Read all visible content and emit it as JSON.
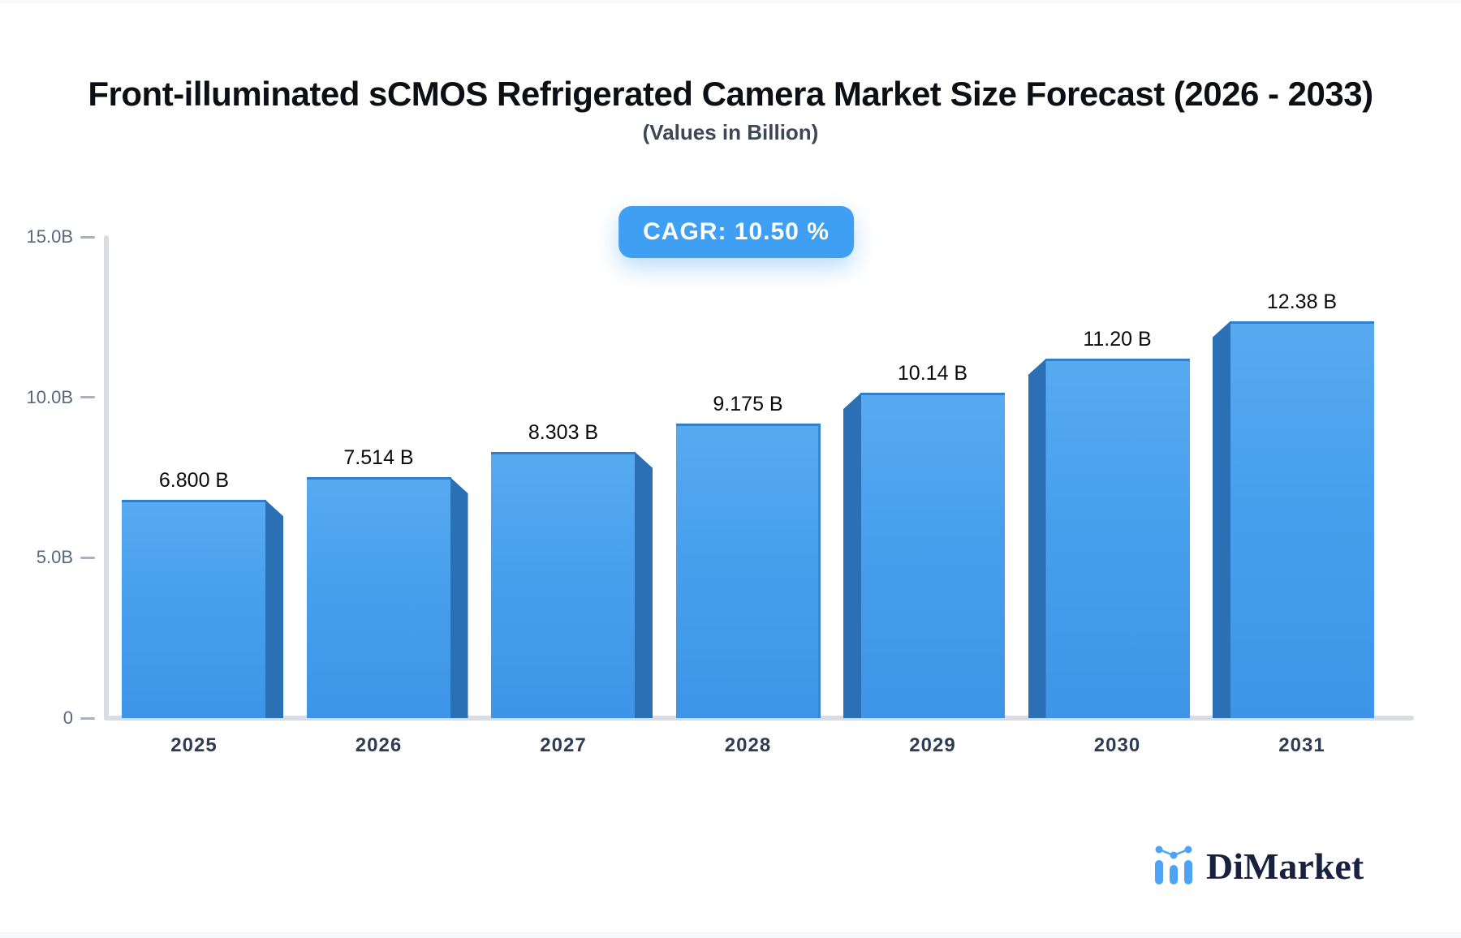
{
  "title": "Front-illuminated sCMOS Refrigerated Camera Market Size Forecast (2026 - 2033)",
  "subtitle": "(Values in Billion)",
  "cagr_badge": "CAGR: 10.50 %",
  "watermark": {
    "brand": "DiMarket",
    "icon": "bar-chart-trend-icon"
  },
  "colors": {
    "bar_face": "#479fec",
    "bar_face_top": "#58aaf0",
    "bar_face_bottom": "#3e95e8",
    "bar_top_edge": "#2e80cc",
    "bar_side_face": "#2b70b4",
    "badge_bg": "#3f9ff2",
    "badge_text": "#ffffff",
    "title_text": "#0d0f14",
    "subtitle_text": "#3c4758",
    "axis_line": "#d8dce3",
    "y_tick_text": "#57687d",
    "x_tick_text": "#2e3c56",
    "value_label_text": "#0a0a0a",
    "logo_blue": "#4da3f5",
    "logo_navy": "#18213f"
  },
  "chart_data": {
    "type": "bar",
    "title": "Front-illuminated sCMOS Refrigerated Camera Market Size Forecast (2026 - 2033)",
    "subtitle": "(Values in Billion)",
    "categories": [
      "2025",
      "2026",
      "2027",
      "2028",
      "2029",
      "2030",
      "2031"
    ],
    "values": [
      6.8,
      7.514,
      8.303,
      9.175,
      10.14,
      11.2,
      12.38
    ],
    "bar_labels": [
      "6.800 B",
      "7.514 B",
      "8.303 B",
      "9.175 B",
      "10.14 B",
      "11.20 B",
      "12.38 B"
    ],
    "xlabel": "",
    "ylabel": "",
    "ylim": [
      0,
      15
    ],
    "yticks": [
      {
        "value": 0,
        "label": "0"
      },
      {
        "value": 5,
        "label": "5.0B"
      },
      {
        "value": 10,
        "label": "10.0B"
      },
      {
        "value": 15,
        "label": "15.0B"
      }
    ],
    "grid": false,
    "legend": false,
    "annotations": [
      "CAGR: 10.50 %"
    ]
  }
}
